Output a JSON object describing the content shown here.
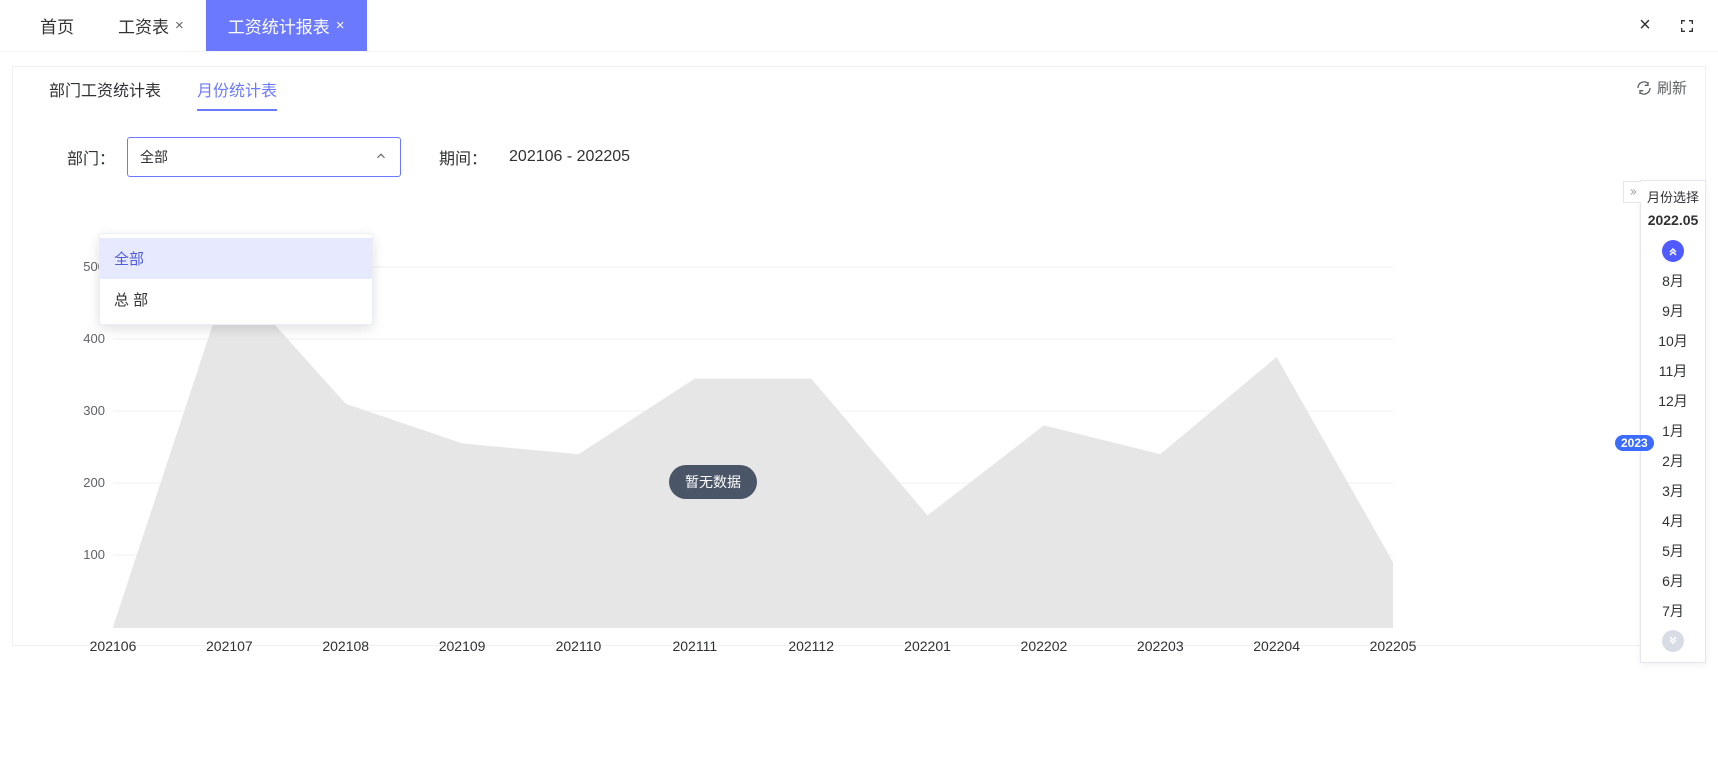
{
  "topbar": {
    "tabs": [
      {
        "label": "首页",
        "closable": false,
        "active": false
      },
      {
        "label": "工资表",
        "closable": true,
        "active": false
      },
      {
        "label": "工资统计报表",
        "closable": true,
        "active": true
      }
    ]
  },
  "subtabs": {
    "items": [
      {
        "label": "部门工资统计表",
        "active": false
      },
      {
        "label": "月份统计表",
        "active": true
      }
    ],
    "refresh_label": "刷新"
  },
  "filters": {
    "dept_label": "部门：",
    "dept_select_value": "全部",
    "dept_options": [
      {
        "label": "全部",
        "selected": true
      },
      {
        "label": "总 部",
        "selected": false
      }
    ],
    "period_label": "期间：",
    "period_value": "202106 - 202205"
  },
  "chart": {
    "type": "area",
    "badge_text": "暂无数据",
    "ylim": [
      0,
      500
    ],
    "ytick_step": 100,
    "yticks": [
      0,
      100,
      200,
      300,
      400,
      500
    ],
    "x_categories": [
      "202106",
      "202107",
      "202108",
      "202109",
      "202110",
      "202111",
      "202112",
      "202201",
      "202202",
      "202203",
      "202204",
      "202205"
    ],
    "series": {
      "values": [
        0,
        490,
        310,
        255,
        240,
        345,
        345,
        155,
        280,
        240,
        375,
        90
      ]
    },
    "area_fill": "#e6e6e6",
    "background_color": "#ffffff",
    "grid_color": "#f0f0f0",
    "axis_color": "#cccccc",
    "ylabel_color": "#606266",
    "xlabel_color": "#303133",
    "ylabel_fontsize": 13,
    "xlabel_fontsize": 14
  },
  "month_panel": {
    "title": "月份选择",
    "current": "2022.05",
    "year_marker": "2023",
    "months": [
      "8月",
      "9月",
      "10月",
      "11月",
      "12月",
      "1月",
      "2月",
      "3月",
      "4月",
      "5月",
      "6月",
      "7月"
    ]
  }
}
